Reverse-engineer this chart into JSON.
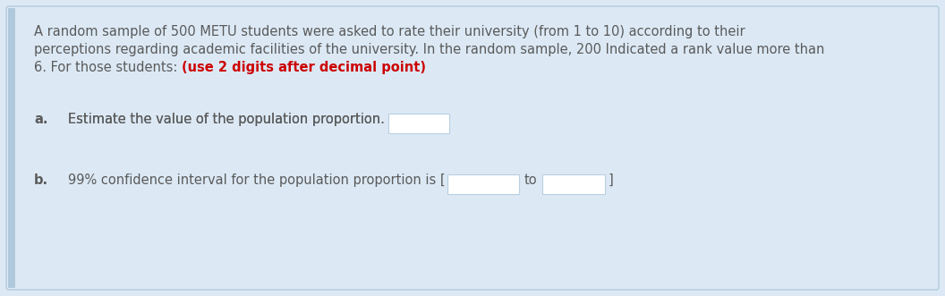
{
  "bg_color": "#dce9f5",
  "text_color": "#5a5a5a",
  "bold_color": "#cc0000",
  "white_box_color": "#ffffff",
  "border_color": "#b8cfe0",
  "left_bar_color": "#b0c8dc",
  "para_text_line1": "A random sample of 500 METU students were asked to rate their university (from 1 to 10) according to their",
  "para_text_line2": "perceptions regarding academic facilities of the university. In the random sample, 200 Indicated a rank value more than",
  "para_text_line3_normal": "6. For those students: ",
  "para_text_line3_bold": "(use 2 digits after decimal point)",
  "part_a_label": "a.",
  "part_a_text": "Estimate the value of the population proportion.",
  "part_b_label": "b.",
  "part_b_text": "99% confidence interval for the population proportion is [",
  "part_b_to": "to",
  "part_b_close": "]",
  "font_size": 10.5,
  "fig_width": 10.56,
  "fig_height": 3.31,
  "dpi": 100
}
